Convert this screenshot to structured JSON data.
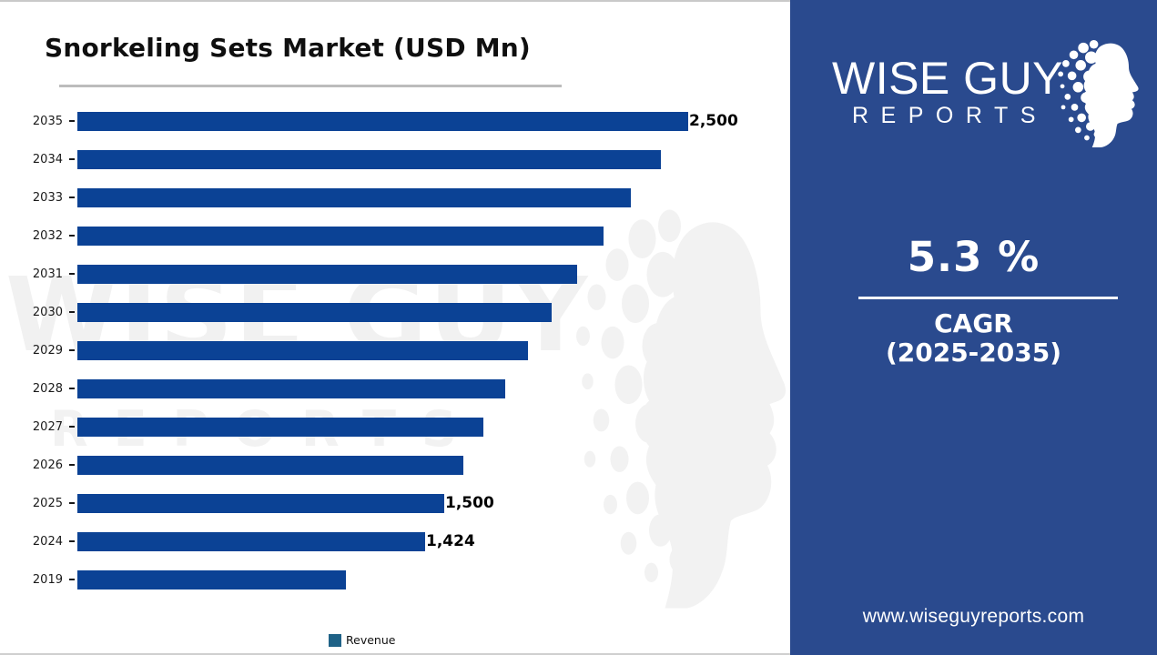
{
  "chart": {
    "title": "Snorkeling Sets Market (USD Mn)",
    "legend_label": "Revenue"
  },
  "chart_data": {
    "type": "bar",
    "orientation": "horizontal",
    "title": "Snorkeling Sets Market (USD Mn)",
    "xlabel": "",
    "ylabel": "",
    "categories": [
      "2035",
      "2034",
      "2033",
      "2032",
      "2031",
      "2030",
      "2029",
      "2028",
      "2027",
      "2026",
      "2025",
      "2024",
      "2019"
    ],
    "series": [
      {
        "name": "Revenue",
        "values": [
          2500,
          2387,
          2267,
          2153,
          2045,
          1942,
          1844,
          1751,
          1663,
          1580,
          1500,
          1424,
          1100
        ]
      }
    ],
    "value_labels": [
      "2,500",
      "",
      "",
      "",
      "",
      "",
      "",
      "",
      "",
      "",
      "1,500",
      "1,424",
      ""
    ],
    "xlim": [
      0,
      2500
    ],
    "grid": false,
    "legend_position": "bottom-center",
    "bar_color": "#0b4295",
    "legend_swatch_color": "#1f6287"
  },
  "watermark": {
    "line1": "WISE GUY",
    "line2": "REPORTS"
  },
  "sidebar": {
    "bg_color": "#2a4a8e",
    "logo_line1": "WISE GUY",
    "logo_line2": "REPORTS",
    "cagr_value": "5.3 %",
    "cagr_title": "CAGR",
    "cagr_range": "(2025-2035)",
    "website": "www.wiseguyreports.com"
  }
}
